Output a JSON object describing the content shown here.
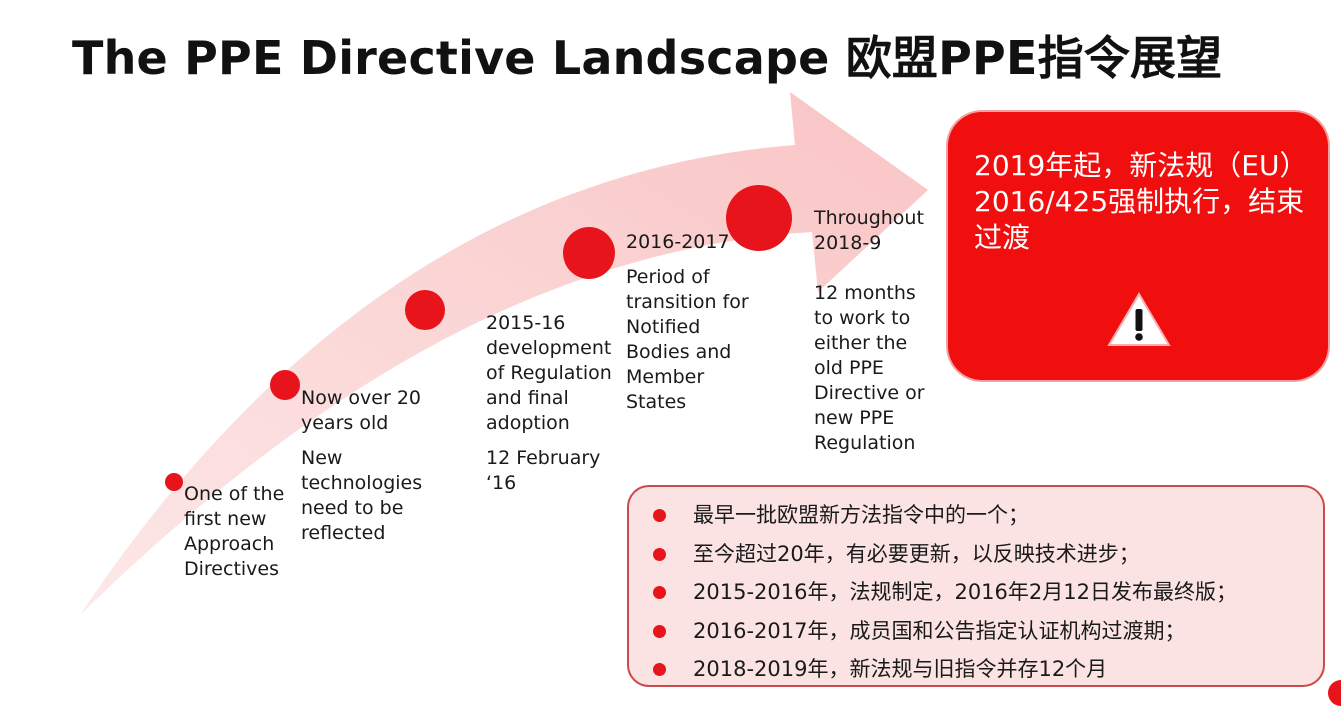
{
  "title": "The PPE Directive Landscape 欧盟PPE指令展望",
  "timeline": [
    {
      "lines": [
        "One of the",
        "first new",
        "Approach",
        "Directives"
      ]
    },
    {
      "head": [
        "Now over 20",
        "years old"
      ],
      "body": [
        "New",
        "technologies",
        "need to be",
        "reflected"
      ]
    },
    {
      "head": [
        "2015-16",
        "development",
        "of Regulation",
        "and final",
        "adoption"
      ],
      "body": [
        "12 February",
        "‘16"
      ]
    },
    {
      "head": [
        "2016-2017"
      ],
      "body": [
        "Period of",
        "transition for",
        "Notified",
        "Bodies and",
        "Member",
        "States"
      ]
    },
    {
      "head": [
        "Throughout",
        "2018-9"
      ],
      "body": [
        "12 months",
        "to work to",
        "either the",
        "old PPE",
        "Directive or",
        "new PPE",
        "Regulation"
      ]
    }
  ],
  "callout": {
    "text": "2019年起，新法规（EU）2016/425强制执行，结束过渡",
    "icon": "warning-icon"
  },
  "summary": [
    "最早一批欧盟新方法指令中的一个；",
    "至今超过20年，有必要更新，以反映技术进步；",
    "2015-2016年，法规制定，2016年2月12日发布最终版；",
    "2016-2017年，成员国和公告指定认证机构过渡期；",
    "2018-2019年，新法规与旧指令并存12个月"
  ],
  "colors": {
    "accent": "#e8141b",
    "arrow": "#fbd3d3",
    "callout": "#f00e0e",
    "summary_bg": "#fbe3e3"
  }
}
